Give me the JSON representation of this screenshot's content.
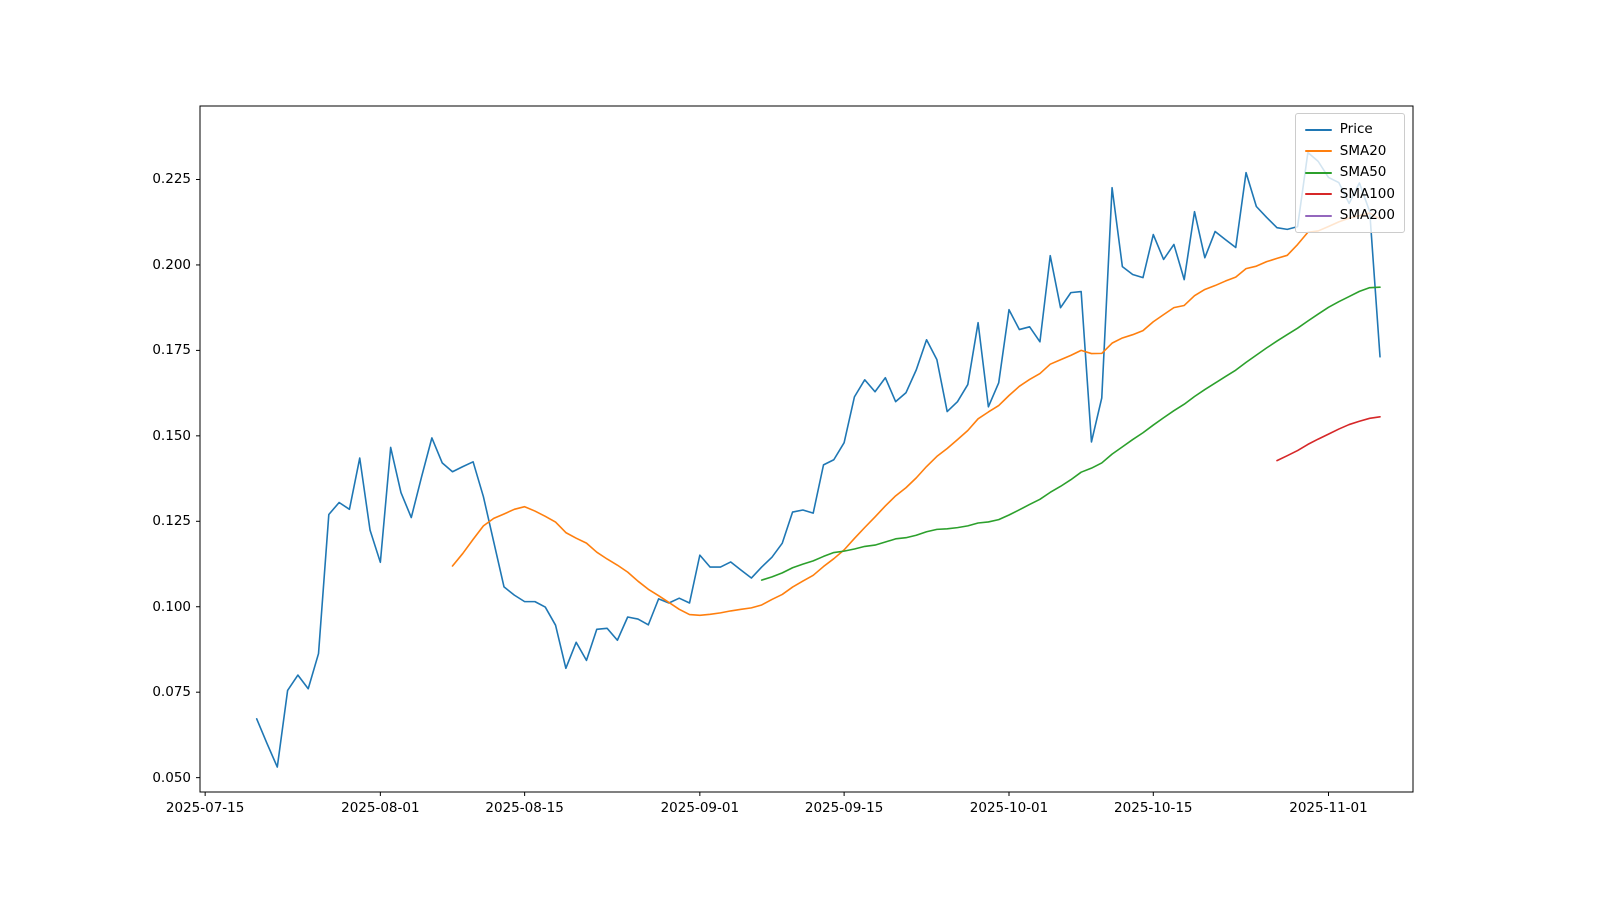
{
  "figure": {
    "background": "#ffffff"
  },
  "chart_data": {
    "type": "line",
    "title": "",
    "xlabel": "",
    "ylabel": "",
    "grid": false,
    "legend": {
      "position": "upper right",
      "labels": [
        "Price",
        "SMA20",
        "SMA50",
        "SMA100",
        "SMA200"
      ]
    },
    "xlim_days": [
      -5.5,
      112.2
    ],
    "ylim": [
      0.0458,
      0.2465
    ],
    "x_ticks": [
      {
        "label": "2025-07-15",
        "day": -5
      },
      {
        "label": "2025-08-01",
        "day": 12
      },
      {
        "label": "2025-08-15",
        "day": 26
      },
      {
        "label": "2025-09-01",
        "day": 43
      },
      {
        "label": "2025-09-15",
        "day": 57
      },
      {
        "label": "2025-10-01",
        "day": 73
      },
      {
        "label": "2025-10-15",
        "day": 87
      },
      {
        "label": "2025-11-01",
        "day": 104
      }
    ],
    "y_ticks": [
      {
        "label": "0.050",
        "value": 0.05
      },
      {
        "label": "0.075",
        "value": 0.075
      },
      {
        "label": "0.100",
        "value": 0.1
      },
      {
        "label": "0.125",
        "value": 0.125
      },
      {
        "label": "0.150",
        "value": 0.15
      },
      {
        "label": "0.175",
        "value": 0.175
      },
      {
        "label": "0.200",
        "value": 0.2
      },
      {
        "label": "0.225",
        "value": 0.225
      }
    ],
    "dates": [
      "2025-07-20",
      "2025-07-21",
      "2025-07-22",
      "2025-07-23",
      "2025-07-24",
      "2025-07-25",
      "2025-07-26",
      "2025-07-27",
      "2025-07-28",
      "2025-07-29",
      "2025-07-30",
      "2025-07-31",
      "2025-08-01",
      "2025-08-02",
      "2025-08-03",
      "2025-08-04",
      "2025-08-05",
      "2025-08-06",
      "2025-08-07",
      "2025-08-08",
      "2025-08-09",
      "2025-08-10",
      "2025-08-11",
      "2025-08-12",
      "2025-08-13",
      "2025-08-14",
      "2025-08-15",
      "2025-08-16",
      "2025-08-17",
      "2025-08-18",
      "2025-08-19",
      "2025-08-20",
      "2025-08-21",
      "2025-08-22",
      "2025-08-23",
      "2025-08-24",
      "2025-08-25",
      "2025-08-26",
      "2025-08-27",
      "2025-08-28",
      "2025-08-29",
      "2025-08-30",
      "2025-08-31",
      "2025-09-01",
      "2025-09-02",
      "2025-09-03",
      "2025-09-04",
      "2025-09-05",
      "2025-09-06",
      "2025-09-07",
      "2025-09-08",
      "2025-09-09",
      "2025-09-10",
      "2025-09-11",
      "2025-09-12",
      "2025-09-13",
      "2025-09-14",
      "2025-09-15",
      "2025-09-16",
      "2025-09-17",
      "2025-09-18",
      "2025-09-19",
      "2025-09-20",
      "2025-09-21",
      "2025-09-22",
      "2025-09-23",
      "2025-09-24",
      "2025-09-25",
      "2025-09-26",
      "2025-09-27",
      "2025-09-28",
      "2025-09-29",
      "2025-09-30",
      "2025-10-01",
      "2025-10-02",
      "2025-10-03",
      "2025-10-04",
      "2025-10-05",
      "2025-10-06",
      "2025-10-07",
      "2025-10-08",
      "2025-10-09",
      "2025-10-10",
      "2025-10-11",
      "2025-10-12",
      "2025-10-13",
      "2025-10-14",
      "2025-10-15",
      "2025-10-16",
      "2025-10-17",
      "2025-10-18",
      "2025-10-19",
      "2025-10-20",
      "2025-10-21",
      "2025-10-22",
      "2025-10-23",
      "2025-10-24",
      "2025-10-25",
      "2025-10-26",
      "2025-10-27",
      "2025-10-28",
      "2025-10-29",
      "2025-10-30",
      "2025-10-31",
      "2025-11-01",
      "2025-11-02",
      "2025-11-03",
      "2025-11-04",
      "2025-11-05",
      "2025-11-06"
    ],
    "price": [
      0.0672,
      0.06,
      0.0531,
      0.0755,
      0.08,
      0.076,
      0.0863,
      0.127,
      0.1305,
      0.1285,
      0.1435,
      0.1224,
      0.113,
      0.1466,
      0.1334,
      0.1261,
      0.138,
      0.1494,
      0.1421,
      0.1395,
      0.141,
      0.1424,
      0.1322,
      0.119,
      0.1058,
      0.1034,
      0.1015,
      0.1015,
      0.0999,
      0.0946,
      0.082,
      0.0896,
      0.0843,
      0.0934,
      0.0937,
      0.0902,
      0.097,
      0.0964,
      0.0947,
      0.1023,
      0.1011,
      0.1025,
      0.1011,
      0.1151,
      0.1116,
      0.1116,
      0.1131,
      0.1107,
      0.1084,
      0.1116,
      0.1145,
      0.1186,
      0.1277,
      0.1283,
      0.1274,
      0.1415,
      0.143,
      0.148,
      0.1614,
      0.1664,
      0.1629,
      0.167,
      0.16,
      0.1626,
      0.1693,
      0.1781,
      0.1723,
      0.1571,
      0.16,
      0.165,
      0.1831,
      0.1585,
      0.1655,
      0.1869,
      0.1811,
      0.1819,
      0.1775,
      0.2027,
      0.1875,
      0.1919,
      0.1922,
      0.1482,
      0.1611,
      0.2226,
      0.1995,
      0.1972,
      0.1963,
      0.2089,
      0.2016,
      0.206,
      0.1957,
      0.2156,
      0.2021,
      0.2098,
      0.2074,
      0.2051,
      0.227,
      0.2171,
      0.2139,
      0.2109,
      0.2104,
      0.2112,
      0.2329,
      0.2303,
      0.2256,
      0.2241,
      0.218,
      0.224,
      0.2156,
      0.1731
    ],
    "series": [
      {
        "name": "Price",
        "color": "#1f77b4",
        "window": null
      },
      {
        "name": "SMA20",
        "color": "#ff7f0e",
        "window": 20
      },
      {
        "name": "SMA50",
        "color": "#2ca02c",
        "window": 50
      },
      {
        "name": "SMA100",
        "color": "#d62728",
        "window": 100
      },
      {
        "name": "SMA200",
        "color": "#9467bd",
        "window": 200
      }
    ]
  }
}
